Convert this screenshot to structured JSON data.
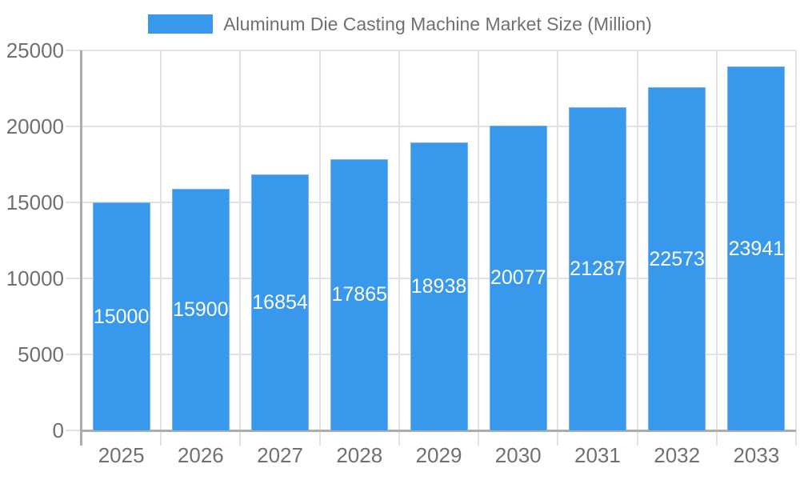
{
  "chart_data": {
    "type": "bar",
    "title": "Aluminum Die Casting Machine Market Size (Million)",
    "legend": {
      "label": "Aluminum Die Casting Machine Market Size (Million)",
      "position": "top"
    },
    "categories": [
      "2025",
      "2026",
      "2027",
      "2028",
      "2029",
      "2030",
      "2031",
      "2032",
      "2033"
    ],
    "series": [
      {
        "name": "Aluminum Die Casting Machine Market Size (Million)",
        "values": [
          15000,
          15900,
          16854,
          17865,
          18938,
          20077,
          21287,
          22573,
          23941
        ]
      }
    ],
    "value_labels_shown": true,
    "xlabel": "",
    "ylabel": "",
    "ylim": [
      0,
      25000
    ],
    "yticks": [
      0,
      5000,
      10000,
      15000,
      20000,
      25000
    ],
    "grid": true,
    "colors": {
      "bar": "#3899EC",
      "bar_border": "#7DB6EF",
      "grid": "#E2E2E2",
      "axis": "#ACACAC",
      "text": "#707070",
      "value_label": "#FFFFFF",
      "background": "#FFFFFF"
    }
  }
}
